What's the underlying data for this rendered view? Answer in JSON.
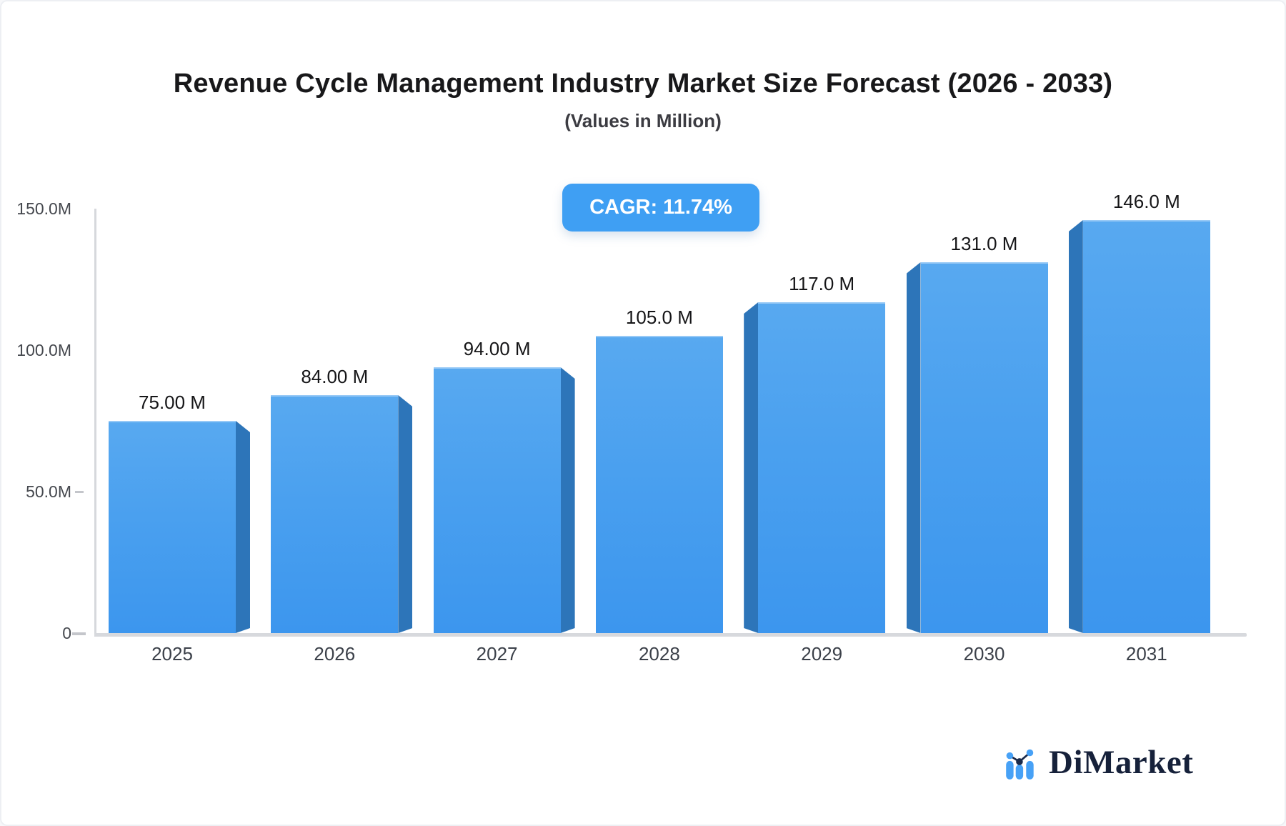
{
  "title": "Revenue Cycle Management Industry Market Size Forecast (2026 - 2033)",
  "subtitle": "(Values in Million)",
  "badge": {
    "label": "CAGR: 11.74%",
    "bg": "#3f9ff3"
  },
  "chart_data": {
    "type": "bar",
    "title": "Revenue Cycle Management Industry Market Size Forecast (2026 - 2033)",
    "subtitle": "(Values in Million)",
    "cagr": "11.74%",
    "unit": "Million",
    "categories": [
      "2025",
      "2026",
      "2027",
      "2028",
      "2029",
      "2030",
      "2031"
    ],
    "values": [
      75,
      84,
      94,
      105,
      117,
      131,
      146
    ],
    "value_labels": [
      "75.00 M",
      "84.00 M",
      "94.00 M",
      "105.0 M",
      "117.0 M",
      "131.0 M",
      "146.0 M"
    ],
    "xlabel": "",
    "ylabel": "",
    "ylim": [
      0,
      150
    ],
    "y_tick_labels": [
      "150.0M",
      "100.0M",
      "50.0M",
      "0"
    ],
    "grid": false,
    "legend_position": "none",
    "bar_color_top": "#58a9f0",
    "bar_color_bottom": "#3c96ee",
    "bar_side_color": "#2d75b9",
    "style": "3d-column"
  },
  "logo": {
    "brand": "DiMarket",
    "icon": "mini-bar-line-chart-icon"
  },
  "colors": {
    "background": "#ffffff",
    "axis": "#d6d8dc",
    "text_dark": "#18181a",
    "badge_text": "#ffffff"
  }
}
